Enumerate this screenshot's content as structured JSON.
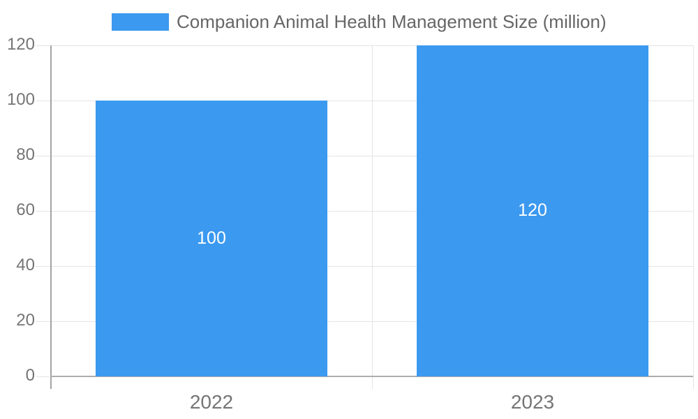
{
  "chart_data": {
    "type": "bar",
    "title": "Companion Animal Health Management Size (million)",
    "categories": [
      "2022",
      "2023"
    ],
    "series": [
      {
        "name": "Companion Animal Health Management Size (million)",
        "values": [
          100,
          120
        ],
        "color": "#3B99F0"
      }
    ],
    "data_labels": [
      "100",
      "120"
    ],
    "xlabel": "",
    "ylabel": "",
    "ylim": [
      0,
      120
    ],
    "yticks": [
      0,
      20,
      40,
      60,
      80,
      100,
      120
    ],
    "grid": true,
    "legend_position": "top"
  },
  "legend": {
    "label": "Companion Animal Health Management Size (million)",
    "swatch_color": "#3B99F0"
  },
  "colors": {
    "bar": "#3B99F0",
    "axis_line": "#a3a3a3",
    "baseline": "#adadad",
    "grid_line": "#e4e4e4",
    "tick_label": "#757575",
    "legend_text": "#666666",
    "data_label": "#ffffff",
    "background": "#ffffff"
  }
}
